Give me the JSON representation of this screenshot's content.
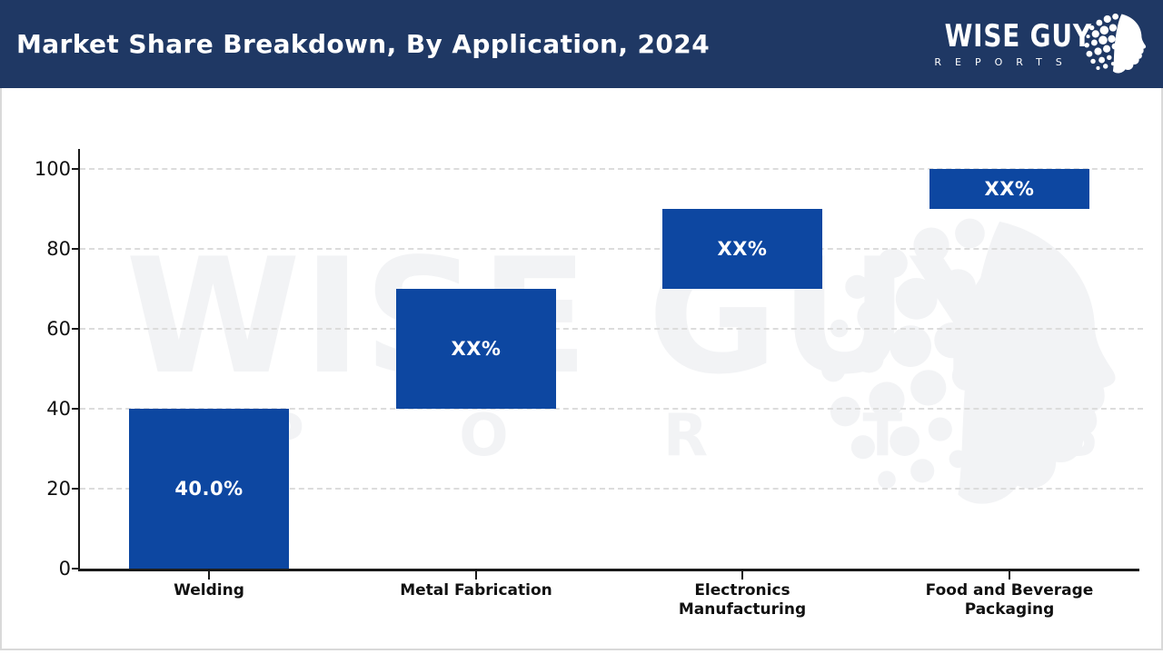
{
  "header": {
    "title": "Market Share Breakdown, By Application, 2024",
    "logo": {
      "line1": "WISE GUY",
      "line2": "REPORTS"
    }
  },
  "watermark": {
    "line1": "WISE GUY",
    "line2": "P O R T S"
  },
  "chart_data": {
    "type": "bar",
    "subtype": "waterfall",
    "title": "Market Share Breakdown, By Application, 2024",
    "xlabel": "",
    "ylabel": "",
    "ylim": [
      0,
      100
    ],
    "yticks": [
      0,
      20,
      40,
      60,
      80,
      100
    ],
    "grid": "horizontal-dashed",
    "legend": "none",
    "categories": [
      "Welding",
      "Metal Fabrication",
      "Electronics Manufacturing",
      "Food and Beverage Packaging"
    ],
    "values": [
      40,
      30,
      20,
      10
    ],
    "segments": [
      {
        "category": "Welding",
        "start": 0,
        "end": 40,
        "label": "40.0%"
      },
      {
        "category": "Metal Fabrication",
        "start": 40,
        "end": 70,
        "label": "XX%"
      },
      {
        "category": "Electronics Manufacturing",
        "start": 70,
        "end": 90,
        "label": "XX%"
      },
      {
        "category": "Food and Beverage Packaging",
        "start": 90,
        "end": 100,
        "label": "XX%"
      }
    ],
    "bar_labels": [
      "40.0%",
      "XX%",
      "XX%",
      "XX%"
    ],
    "colors": {
      "bar": "#0D47A1",
      "header": "#1F3864",
      "grid": "#DCDCDC",
      "axis": "#1A1A1A",
      "watermark": "#F2F3F5",
      "bar_label_text": "#FFFFFF"
    }
  }
}
